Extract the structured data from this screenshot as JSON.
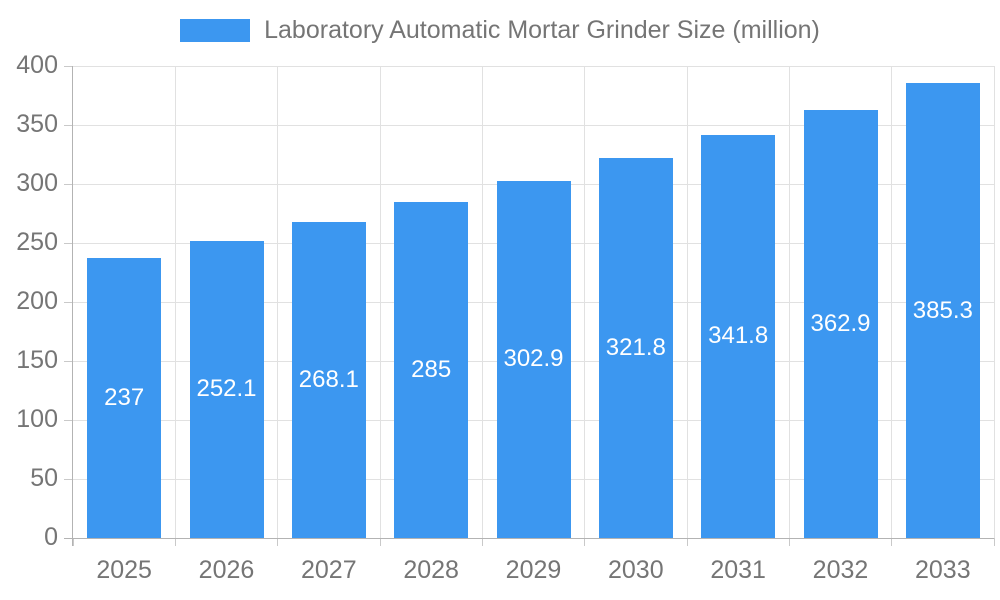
{
  "chart_data": {
    "type": "bar",
    "title": "Laboratory Automatic Mortar Grinder Size (million)",
    "categories": [
      "2025",
      "2026",
      "2027",
      "2028",
      "2029",
      "2030",
      "2031",
      "2032",
      "2033"
    ],
    "values": [
      237,
      252.1,
      268.1,
      285,
      302.9,
      321.8,
      341.8,
      362.9,
      385.3
    ],
    "xlabel": "",
    "ylabel": "",
    "ylim": [
      0,
      400
    ],
    "yticks": [
      0,
      50,
      100,
      150,
      200,
      250,
      300,
      350,
      400
    ],
    "grid": true,
    "legend_position": "top",
    "value_label_position": "inside-center",
    "colors": {
      "bar": "#3C97F0",
      "bar_value_label": "#FFFFFF",
      "axis_text": "#757575",
      "gridline": "#E1E1E1",
      "axis_line": "#B3B3B3",
      "tick": "#C9C9C9",
      "background": "#FFFFFF"
    }
  }
}
